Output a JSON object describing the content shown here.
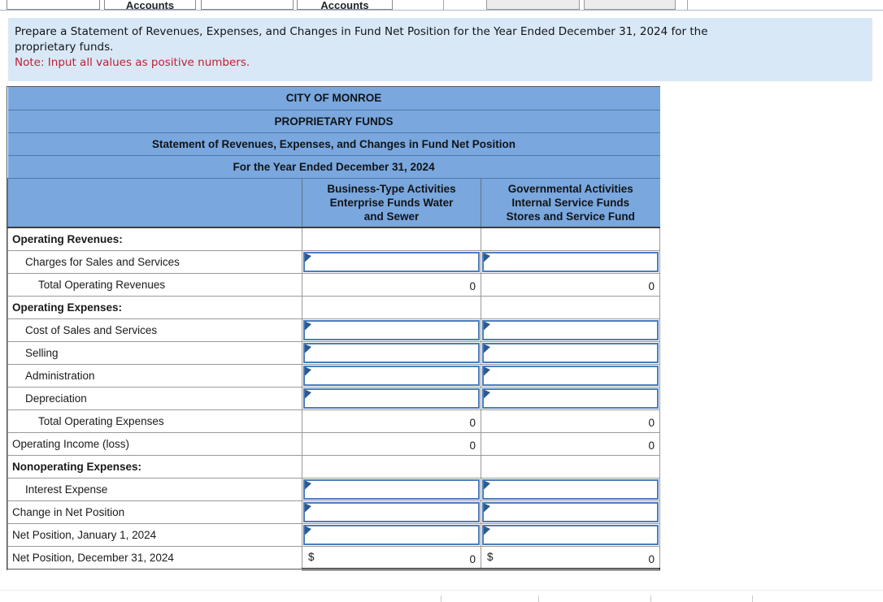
{
  "header_tabs": {
    "labels": [
      "Accounts",
      "Accounts"
    ]
  },
  "instructions": {
    "line1": "Prepare a Statement of Revenues, Expenses, and Changes in Fund Net Position for the Year Ended December 31, 2024 for the",
    "line2": "proprietary funds.",
    "note": "Note: Input all values as positive numbers."
  },
  "statement": {
    "title_rows": [
      "CITY OF MONROE",
      "PROPRIETARY FUNDS",
      "Statement of Revenues, Expenses, and Changes in Fund Net Position",
      "For the Year Ended December 31, 2024"
    ],
    "columns": [
      {
        "text": "Business-Type Activities\nEnterprise Funds Water\nand Sewer"
      },
      {
        "text": "Governmental Activities\nInternal Service Funds\nStores and Service Fund"
      }
    ],
    "rows": [
      {
        "label": "Operating Revenues:",
        "style": "section",
        "indent": 0,
        "cells": [
          {
            "type": "blank"
          },
          {
            "type": "blank"
          }
        ]
      },
      {
        "label": "Charges for Sales and Services",
        "style": "detail",
        "indent": 1,
        "cells": [
          {
            "type": "input"
          },
          {
            "type": "input"
          }
        ]
      },
      {
        "label": "Total Operating Revenues",
        "style": "detail",
        "indent": 2,
        "cells": [
          {
            "type": "value",
            "value": "0"
          },
          {
            "type": "value",
            "value": "0"
          }
        ]
      },
      {
        "label": "Operating Expenses:",
        "style": "section",
        "indent": 0,
        "cells": [
          {
            "type": "blank"
          },
          {
            "type": "blank"
          }
        ]
      },
      {
        "label": "Cost of Sales and Services",
        "style": "detail",
        "indent": 1,
        "cells": [
          {
            "type": "input"
          },
          {
            "type": "input"
          }
        ]
      },
      {
        "label": "Selling",
        "style": "detail",
        "indent": 1,
        "cells": [
          {
            "type": "input"
          },
          {
            "type": "input"
          }
        ]
      },
      {
        "label": "Administration",
        "style": "detail",
        "indent": 1,
        "cells": [
          {
            "type": "input"
          },
          {
            "type": "input"
          }
        ]
      },
      {
        "label": "Depreciation",
        "style": "detail",
        "indent": 1,
        "cells": [
          {
            "type": "input"
          },
          {
            "type": "input"
          }
        ]
      },
      {
        "label": "Total Operating Expenses",
        "style": "detail",
        "indent": 2,
        "cells": [
          {
            "type": "value",
            "value": "0"
          },
          {
            "type": "value",
            "value": "0"
          }
        ]
      },
      {
        "label": "Operating Income (loss)",
        "style": "detail",
        "indent": 0,
        "cells": [
          {
            "type": "value",
            "value": "0"
          },
          {
            "type": "value",
            "value": "0"
          }
        ]
      },
      {
        "label": "Nonoperating Expenses:",
        "style": "section",
        "indent": 0,
        "cells": [
          {
            "type": "blank"
          },
          {
            "type": "blank"
          }
        ]
      },
      {
        "label": "Interest Expense",
        "style": "detail",
        "indent": 1,
        "cells": [
          {
            "type": "input"
          },
          {
            "type": "input"
          }
        ]
      },
      {
        "label": "Change in Net Position",
        "style": "detail",
        "indent": 0,
        "cells": [
          {
            "type": "input"
          },
          {
            "type": "input"
          }
        ]
      },
      {
        "label": "Net Position, January 1, 2024",
        "style": "detail",
        "indent": 0,
        "cells": [
          {
            "type": "input"
          },
          {
            "type": "input"
          }
        ]
      },
      {
        "label": "Net Position, December 31, 2024",
        "style": "detail",
        "indent": 0,
        "last": true,
        "cells": [
          {
            "type": "value",
            "value": "0",
            "prefix": "$",
            "underline": "double"
          },
          {
            "type": "value",
            "value": "0",
            "prefix": "$",
            "underline": "double"
          }
        ]
      }
    ]
  }
}
